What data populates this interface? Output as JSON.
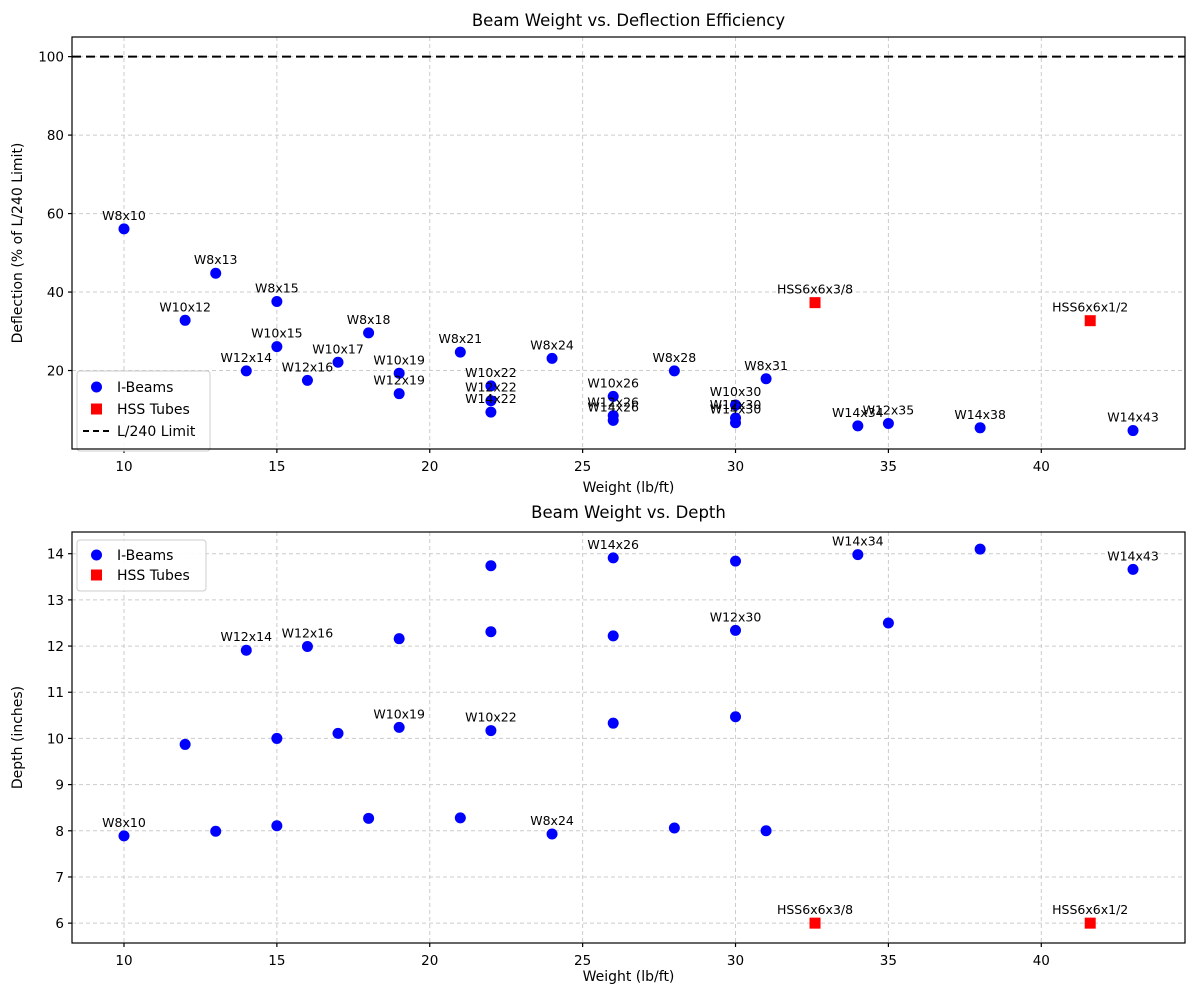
{
  "figure": {
    "background": "#ffffff"
  },
  "chart_data": {
    "series": {
      "i_beams": {
        "label": "I-Beams",
        "color": "#0000ff",
        "marker": "circle",
        "points": [
          {
            "name": "W8x10",
            "weight": 10,
            "deflection": 56.1,
            "depth": 7.89
          },
          {
            "name": "W10x12",
            "weight": 12,
            "deflection": 32.8,
            "depth": 9.87
          },
          {
            "name": "W8x13",
            "weight": 13,
            "deflection": 44.8,
            "depth": 7.99
          },
          {
            "name": "W12x14",
            "weight": 14,
            "deflection": 19.9,
            "depth": 11.91
          },
          {
            "name": "W8x15",
            "weight": 15,
            "deflection": 37.6,
            "depth": 8.11
          },
          {
            "name": "W10x15",
            "weight": 15,
            "deflection": 26.1,
            "depth": 10.0
          },
          {
            "name": "W12x16",
            "weight": 16,
            "deflection": 17.5,
            "depth": 11.99
          },
          {
            "name": "W10x17",
            "weight": 17,
            "deflection": 22.1,
            "depth": 10.11
          },
          {
            "name": "W8x18",
            "weight": 18,
            "deflection": 29.6,
            "depth": 8.27
          },
          {
            "name": "W10x19",
            "weight": 19,
            "deflection": 19.3,
            "depth": 10.24
          },
          {
            "name": "W12x19",
            "weight": 19,
            "deflection": 14.1,
            "depth": 12.16
          },
          {
            "name": "W8x21",
            "weight": 21,
            "deflection": 24.7,
            "depth": 8.28
          },
          {
            "name": "W10x22",
            "weight": 22,
            "deflection": 16.1,
            "depth": 10.17
          },
          {
            "name": "W12x22",
            "weight": 22,
            "deflection": 12.3,
            "depth": 12.31
          },
          {
            "name": "W14x22",
            "weight": 22,
            "deflection": 9.4,
            "depth": 13.74
          },
          {
            "name": "W8x24",
            "weight": 24,
            "deflection": 23.1,
            "depth": 7.93
          },
          {
            "name": "W10x26",
            "weight": 26,
            "deflection": 13.4,
            "depth": 10.33
          },
          {
            "name": "W12x26",
            "weight": 26,
            "deflection": 8.5,
            "depth": 12.22
          },
          {
            "name": "W14x26",
            "weight": 26,
            "deflection": 7.3,
            "depth": 13.91
          },
          {
            "name": "W8x28",
            "weight": 28,
            "deflection": 19.9,
            "depth": 8.06
          },
          {
            "name": "W10x30",
            "weight": 30,
            "deflection": 11.2,
            "depth": 10.47
          },
          {
            "name": "W12x30",
            "weight": 30,
            "deflection": 7.9,
            "depth": 12.34
          },
          {
            "name": "W14x30",
            "weight": 30,
            "deflection": 6.7,
            "depth": 13.84
          },
          {
            "name": "W8x31",
            "weight": 31,
            "deflection": 17.9,
            "depth": 8.0
          },
          {
            "name": "W14x34",
            "weight": 34,
            "deflection": 5.9,
            "depth": 13.98
          },
          {
            "name": "W12x35",
            "weight": 35,
            "deflection": 6.5,
            "depth": 12.5
          },
          {
            "name": "W14x38",
            "weight": 38,
            "deflection": 5.4,
            "depth": 14.1
          },
          {
            "name": "W14x43",
            "weight": 43,
            "deflection": 4.7,
            "depth": 13.66
          }
        ]
      },
      "hss_tubes": {
        "label": "HSS Tubes",
        "color": "#ff0000",
        "marker": "square",
        "points": [
          {
            "name": "HSS6x6x3/8",
            "weight": 32.6,
            "deflection": 37.3,
            "depth": 6.0
          },
          {
            "name": "HSS6x6x1/2",
            "weight": 41.6,
            "deflection": 32.7,
            "depth": 6.0
          }
        ]
      }
    },
    "charts": [
      {
        "type": "scatter",
        "title": "Beam Weight vs. Deflection Efficiency",
        "xlabel": "Weight (lb/ft)",
        "ylabel": "Deflection (% of L/240 Limit)",
        "xlim": [
          8.3,
          44.7
        ],
        "ylim": [
          0,
          105
        ],
        "xticks": [
          10,
          15,
          20,
          25,
          30,
          35,
          40
        ],
        "yticks": [
          20,
          40,
          60,
          80,
          100
        ],
        "grid": true,
        "y_key": "deflection",
        "ref_line": {
          "value": 100,
          "label": "L/240 Limit",
          "color": "#000000",
          "style": "dashed"
        },
        "legend": {
          "position": "lower-left",
          "entries": [
            "I-Beams",
            "HSS Tubes",
            "L/240 Limit"
          ]
        },
        "labeled_points": [
          "W8x10",
          "W10x12",
          "W8x13",
          "W12x14",
          "W8x15",
          "W10x15",
          "W12x16",
          "W10x17",
          "W8x18",
          "W10x19",
          "W12x19",
          "W8x21",
          "W10x22",
          "W12x22",
          "W14x22",
          "W8x24",
          "W10x26",
          "W12x26",
          "W14x26",
          "W8x28",
          "W10x30",
          "W12x30",
          "W14x30",
          "W8x31",
          "W14x34",
          "W12x35",
          "W14x38",
          "W14x43",
          "HSS6x6x3/8",
          "HSS6x6x1/2"
        ]
      },
      {
        "type": "scatter",
        "title": "Beam Weight vs. Depth",
        "xlabel": "Weight (lb/ft)",
        "ylabel": "Depth (inches)",
        "xlim": [
          8.3,
          44.7
        ],
        "ylim": [
          5.57,
          14.47
        ],
        "xticks": [
          10,
          15,
          20,
          25,
          30,
          35,
          40
        ],
        "yticks": [
          6,
          7,
          8,
          9,
          10,
          11,
          12,
          13,
          14
        ],
        "grid": true,
        "y_key": "depth",
        "legend": {
          "position": "upper-left",
          "entries": [
            "I-Beams",
            "HSS Tubes"
          ]
        },
        "labeled_points": [
          "W8x10",
          "W12x14",
          "W12x16",
          "W10x19",
          "W10x22",
          "W8x24",
          "W14x26",
          "W12x30",
          "W14x34",
          "W14x43",
          "HSS6x6x3/8",
          "HSS6x6x1/2"
        ]
      }
    ]
  }
}
